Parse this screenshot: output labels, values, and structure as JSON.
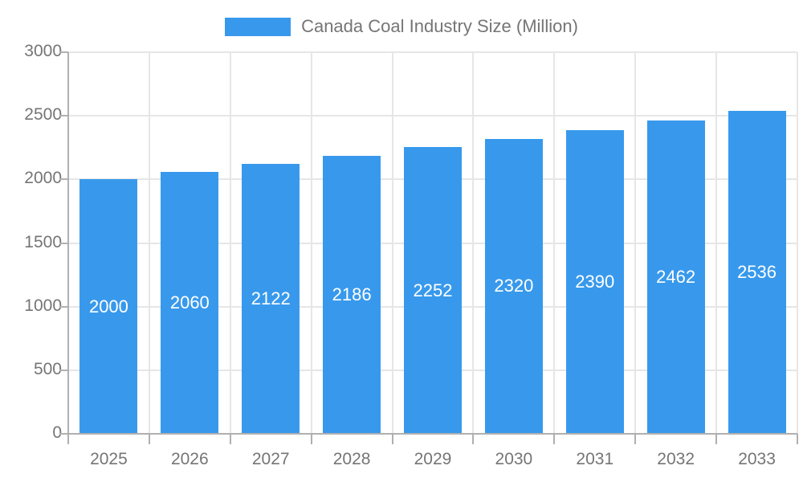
{
  "legend": {
    "label": "Canada Coal Industry Size (Million)"
  },
  "chart_data": {
    "type": "bar",
    "title": "Canada Coal Industry Size (Million)",
    "categories": [
      "2025",
      "2026",
      "2027",
      "2028",
      "2029",
      "2030",
      "2031",
      "2032",
      "2033"
    ],
    "values": [
      2000,
      2060,
      2122,
      2186,
      2252,
      2320,
      2390,
      2462,
      2536
    ],
    "series": [
      {
        "name": "Canada Coal Industry Size (Million)",
        "values": [
          2000,
          2060,
          2122,
          2186,
          2252,
          2320,
          2390,
          2462,
          2536
        ]
      }
    ],
    "xlabel": "",
    "ylabel": "",
    "ylim": [
      0,
      3000
    ],
    "y_ticks": [
      0,
      500,
      1000,
      1500,
      2000,
      2500,
      3000
    ],
    "grid": true,
    "legend_position": "top-center",
    "bar_label_position": "inside-center",
    "colors": {
      "bar": "#3899ec",
      "grid": "#e6e6e6",
      "axis": "#b0b0b0",
      "text": "#757575",
      "bar_label": "#ffffff",
      "background": "#ffffff"
    }
  }
}
